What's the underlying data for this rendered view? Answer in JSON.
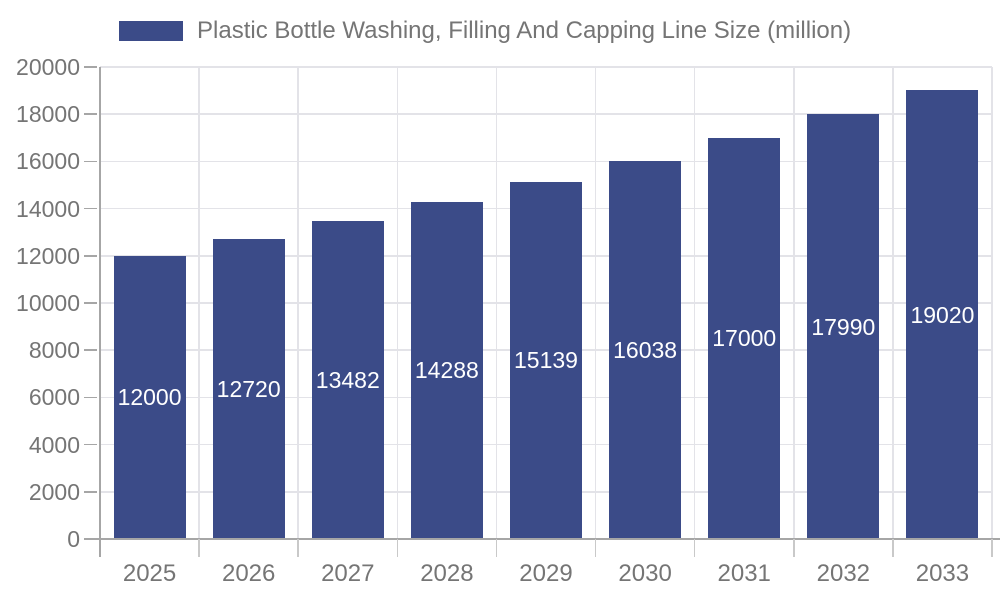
{
  "legend": {
    "label": "Plastic Bottle Washing, Filling And Capping Line Size (million)"
  },
  "colors": {
    "bar": "#3B4B88",
    "bar_label": "#FFFFFF",
    "axis_text": "#757575",
    "legend_text": "#757575",
    "grid_line": "#E3E3E8",
    "axis_line": "#A6A6A6",
    "tick_line": "#C9C9C9",
    "background": "#FFFFFF"
  },
  "chart_data": {
    "type": "bar",
    "title": "Plastic Bottle Washing, Filling And Capping Line Size (million)",
    "categories": [
      "2025",
      "2026",
      "2027",
      "2028",
      "2029",
      "2030",
      "2031",
      "2032",
      "2033"
    ],
    "series": [
      {
        "name": "Plastic Bottle Washing, Filling And Capping Line Size (million)",
        "values": [
          12000,
          12720,
          13482,
          14288,
          15139,
          16038,
          17000,
          17990,
          19020
        ]
      }
    ],
    "value_labels": [
      "12000",
      "12720",
      "13482",
      "14288",
      "15139",
      "16038",
      "17000",
      "17990",
      "19020"
    ],
    "xlabel": "",
    "ylabel": "",
    "ylim": [
      0,
      20000
    ],
    "ytick_step": 2000,
    "yticks": [
      "0",
      "2000",
      "4000",
      "6000",
      "8000",
      "10000",
      "12000",
      "14000",
      "16000",
      "18000",
      "20000"
    ],
    "grid": true,
    "legend_position": "top",
    "value_label_position": "inside-center"
  }
}
